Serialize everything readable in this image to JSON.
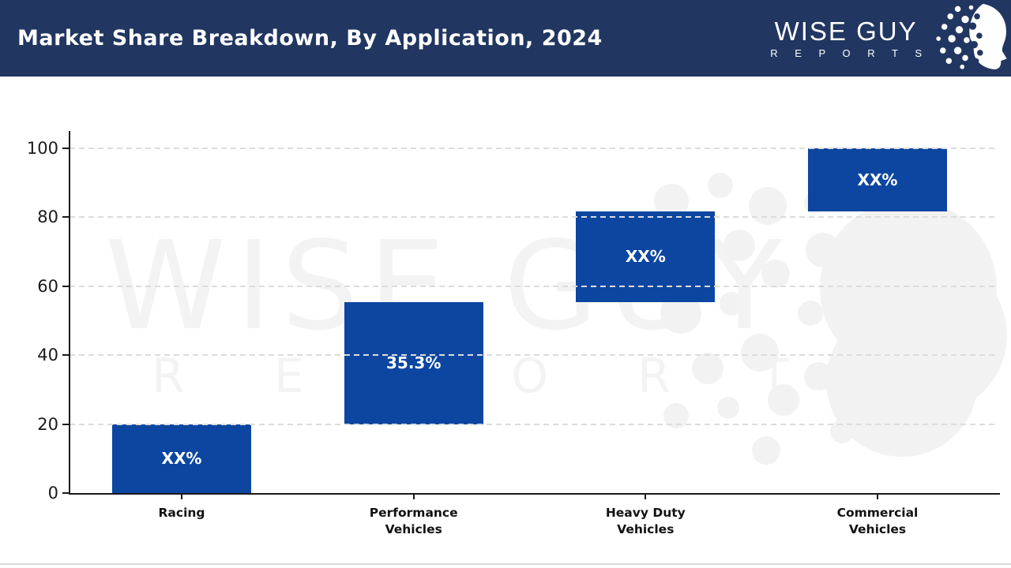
{
  "header": {
    "title": "Market Share Breakdown, By Application, 2024",
    "background_color": "#213660",
    "logo": {
      "line1": "WISE GUY",
      "line2": "R E P O R T S"
    }
  },
  "watermark": {
    "line1": "WISE GUY",
    "line2": "R E P O R T S"
  },
  "chart_data": {
    "type": "bar",
    "subtype": "waterfall",
    "title": "Market Share Breakdown, By Application, 2024",
    "categories": [
      "Racing",
      "Performance Vehicles",
      "Heavy Duty Vehicles",
      "Commercial Vehicles"
    ],
    "category_lines": [
      [
        "Racing"
      ],
      [
        "Performance",
        "Vehicles"
      ],
      [
        "Heavy Duty",
        "Vehicles"
      ],
      [
        "Commercial",
        "Vehicles"
      ]
    ],
    "bars": [
      {
        "category": "Racing",
        "start": 0,
        "end": 20,
        "value": 20,
        "label": "XX%"
      },
      {
        "category": "Performance Vehicles",
        "start": 20,
        "end": 55.3,
        "value": 35.3,
        "label": "35.3%"
      },
      {
        "category": "Heavy Duty Vehicles",
        "start": 55.3,
        "end": 81.7,
        "value": 26.4,
        "label": "XX%"
      },
      {
        "category": "Commercial Vehicles",
        "start": 81.7,
        "end": 100,
        "value": 18.3,
        "label": "XX%"
      }
    ],
    "yticks": [
      0,
      20,
      40,
      60,
      80,
      100
    ],
    "ylim": [
      0,
      105
    ],
    "xlabel": "",
    "ylabel": "",
    "grid": "horizontal-dashed",
    "gridline_color": "#dcdcdc",
    "legend": "none",
    "bar_color": "#0c46a0",
    "bar_label_color": "#ffffff",
    "axis_color": "#1a1a1a"
  }
}
